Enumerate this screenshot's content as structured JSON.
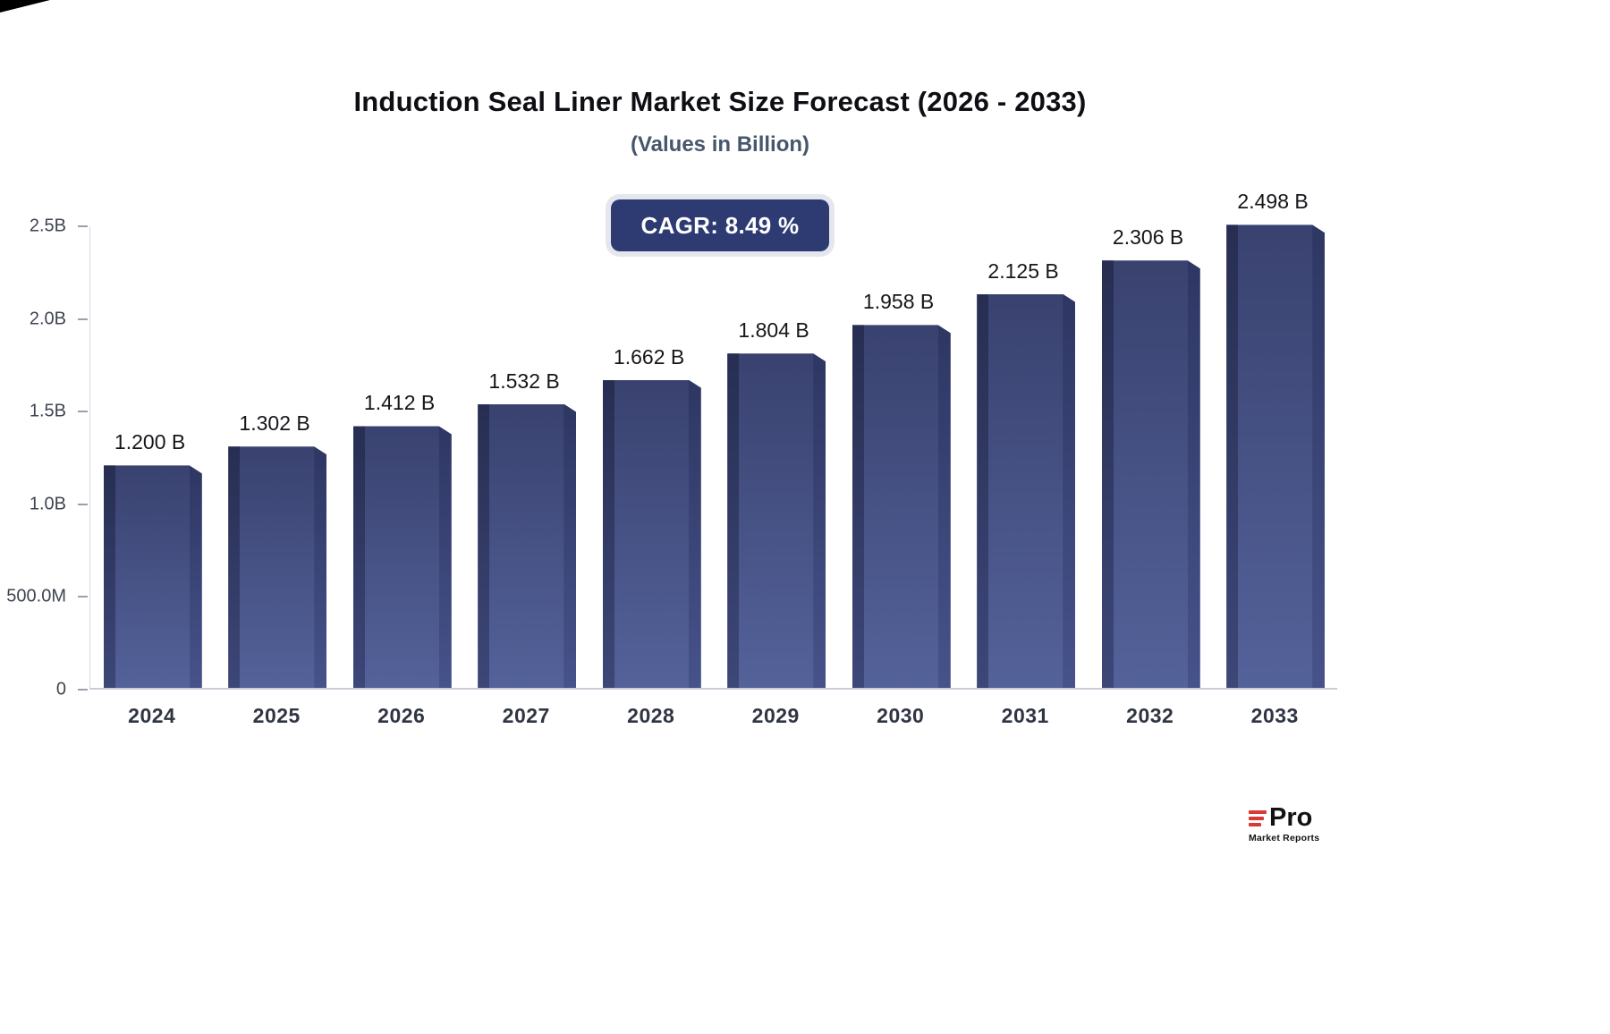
{
  "title": "Induction Seal Liner Market Size Forecast (2026 - 2033)",
  "subtitle": "(Values in Billion)",
  "badge": {
    "label": "CAGR: 8.49 %",
    "bg": "#2d3b72"
  },
  "chart_data": {
    "type": "bar",
    "title": "Induction Seal Liner Market Size Forecast (2026 - 2033)",
    "subtitle": "(Values in Billion)",
    "categories": [
      "2024",
      "2025",
      "2026",
      "2027",
      "2028",
      "2029",
      "2030",
      "2031",
      "2032",
      "2033"
    ],
    "values": [
      1.2,
      1.302,
      1.412,
      1.532,
      1.662,
      1.804,
      1.958,
      2.125,
      2.306,
      2.498
    ],
    "value_labels": [
      "1.200 B",
      "1.302 B",
      "1.412 B",
      "1.532 B",
      "1.662 B",
      "1.804 B",
      "1.958 B",
      "2.125 B",
      "2.306 B",
      "2.498 B"
    ],
    "xlabel": "",
    "ylabel": "",
    "ylim": [
      0,
      2.5
    ],
    "yticks": [
      "2.5B",
      "2.0B",
      "1.5B",
      "1.0B",
      "500.0M",
      "0"
    ],
    "ytick_values": [
      2.5,
      2.0,
      1.5,
      1.0,
      0.5,
      0
    ],
    "grid": false,
    "legend": false,
    "cagr": "8.49 %",
    "bar_color_top": "#39426f",
    "bar_color_bottom": "#54629a"
  },
  "logo": {
    "text": "Pro",
    "subtext": "Market Reports"
  }
}
